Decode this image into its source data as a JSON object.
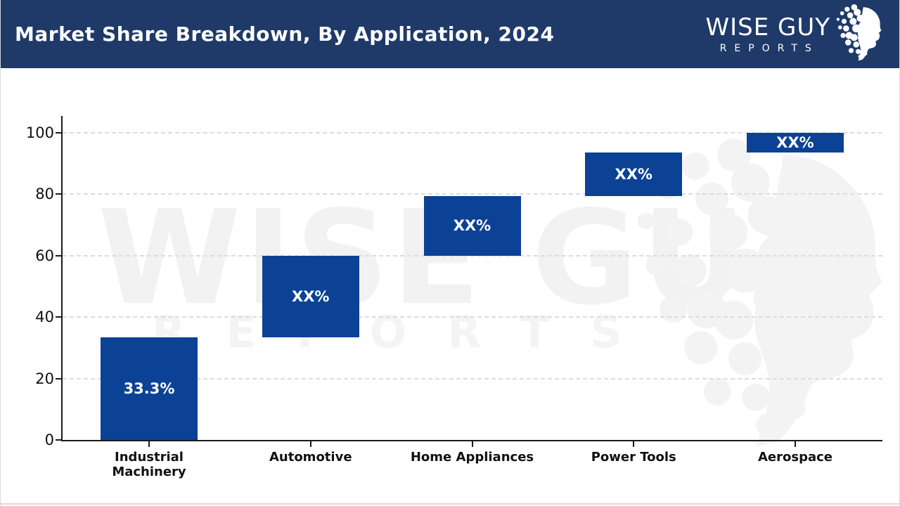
{
  "header": {
    "title": "Market Share Breakdown, By Application, 2024",
    "background_color": "#1f3a68",
    "brand": {
      "name": "WISE GUY",
      "sub": "REPORTS"
    }
  },
  "watermark": {
    "line1": "WISE GUY",
    "line2": "REPORTS"
  },
  "chart_data": {
    "type": "bar",
    "subtype": "waterfall",
    "title": "Market Share Breakdown, By Application, 2024",
    "categories": [
      "Industrial Machinery",
      "Automotive",
      "Home Appliances",
      "Power Tools",
      "Aerospace"
    ],
    "tick_labels": [
      "Industrial\nMachinery",
      "Automotive",
      "Home Appliances",
      "Power Tools",
      "Aerospace"
    ],
    "segments": [
      {
        "category": "Industrial Machinery",
        "start": 0,
        "end": 33.3,
        "label": "33.3%"
      },
      {
        "category": "Automotive",
        "start": 33.3,
        "end": 60,
        "label": "XX%"
      },
      {
        "category": "Home Appliances",
        "start": 60,
        "end": 79.3,
        "label": "XX%"
      },
      {
        "category": "Power Tools",
        "start": 79.3,
        "end": 93.6,
        "label": "XX%"
      },
      {
        "category": "Aerospace",
        "start": 93.6,
        "end": 100,
        "label": "XX%"
      }
    ],
    "xlabel": "",
    "ylabel": "",
    "yticks": [
      0,
      20,
      40,
      60,
      80,
      100
    ],
    "ylim": [
      0,
      105
    ],
    "grid": "horizontal-dashed",
    "legend": "none",
    "bar_color": "#0b4295",
    "value_label_color": "#ffffff",
    "axis_color": "#1a1a1a",
    "gridline_color": "#dcdcdc"
  }
}
